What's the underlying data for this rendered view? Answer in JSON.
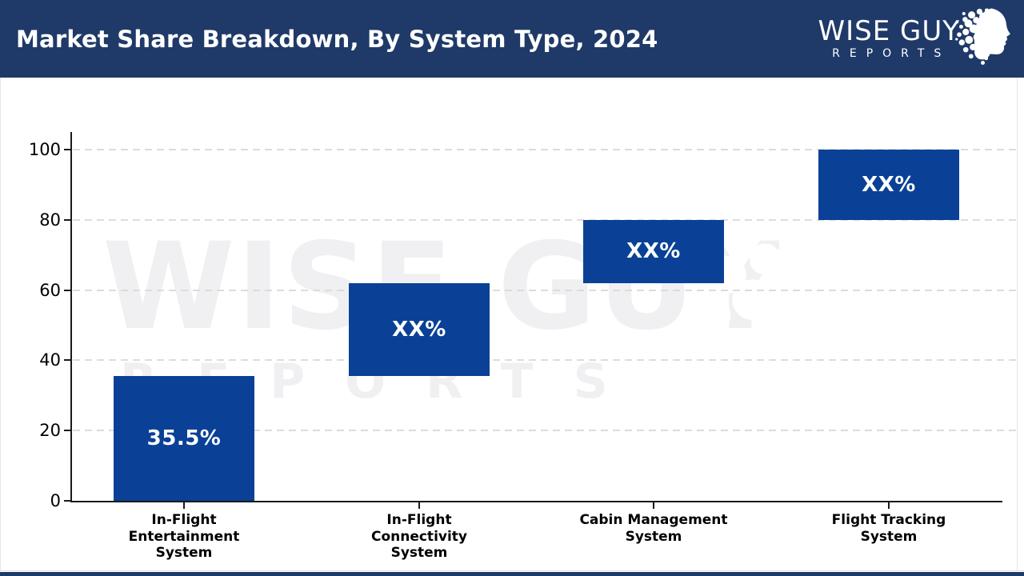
{
  "header": {
    "title": "Market Share Breakdown, By System Type, 2024",
    "logo_line1": "WISE GUY",
    "logo_line2": "REPORTS"
  },
  "watermark": {
    "line1": "WISE GUY",
    "line2": "REPORTS"
  },
  "chart_data": {
    "type": "bar",
    "subtype": "waterfall",
    "title": "Market Share Breakdown, By System Type, 2024",
    "categories": [
      "In-Flight Entertainment System",
      "In-Flight Connectivity System",
      "Cabin Management System",
      "Flight Tracking System"
    ],
    "categories_lines": [
      [
        "In-Flight",
        "Entertainment",
        "System"
      ],
      [
        "In-Flight",
        "Connectivity",
        "System"
      ],
      [
        "Cabin Management",
        "System"
      ],
      [
        "Flight Tracking",
        "System"
      ]
    ],
    "segments": [
      {
        "category": "In-Flight Entertainment System",
        "from": 0,
        "to": 35.5,
        "value": 35.5,
        "label": "35.5%"
      },
      {
        "category": "In-Flight Connectivity System",
        "from": 35.5,
        "to": 62,
        "value": 26.5,
        "label": "XX%"
      },
      {
        "category": "Cabin Management System",
        "from": 62,
        "to": 80,
        "value": 18,
        "label": "XX%"
      },
      {
        "category": "Flight Tracking System",
        "from": 80,
        "to": 100,
        "value": 20,
        "label": "XX%"
      }
    ],
    "yticks": [
      0,
      20,
      40,
      60,
      80,
      100
    ],
    "ylim": [
      0,
      105
    ],
    "grid": "horizontal-dashed",
    "legend": "none",
    "xlabel": "",
    "ylabel": ""
  },
  "colors": {
    "header_bg": "#1F3A68",
    "footer_bg": "#1F3A68",
    "bar": "#0A4196",
    "axis": "#1A1A1A",
    "grid": "#DCDCDC",
    "watermark": "#F0F0F2",
    "bar_label": "#FFFFFF",
    "text": "#000000"
  }
}
